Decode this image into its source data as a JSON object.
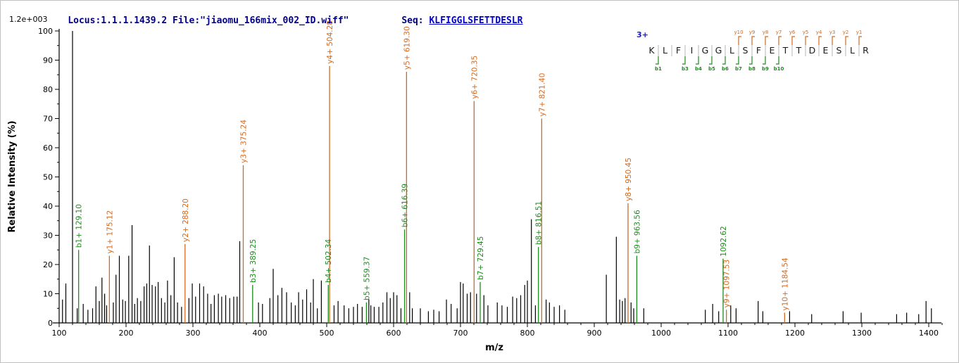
{
  "header": {
    "locus_file": "Locus:1.1.1.1439.2 File:\"jiaomu_166mix_002_ID.wiff\"",
    "seq_label": "Seq: ",
    "sequence": "KLFIGGLSFETTDESLR"
  },
  "colors": {
    "y_ion": "#d2691e",
    "b_ion": "#1e8b1e",
    "peak": "#000000",
    "header_text": "#00008b",
    "sequence_link": "#0000cd",
    "charge_label": "#1c1ccc"
  },
  "chart_data": {
    "type": "bar",
    "title": "",
    "xlabel": "m/z",
    "ylabel": "Relative Intensity (%)",
    "max_intensity_absolute": "1.2e+003",
    "xlim": [
      90,
      1420
    ],
    "ylim": [
      0,
      100
    ],
    "x_ticks": [
      100,
      200,
      300,
      400,
      500,
      600,
      700,
      800,
      900,
      1000,
      1100,
      1200,
      1300,
      1400
    ],
    "y_ticks": [
      0,
      10,
      20,
      30,
      40,
      50,
      60,
      70,
      80,
      90,
      100
    ],
    "grid": false,
    "legend": "none",
    "assigned_peaks": [
      {
        "ion": "b1",
        "mz": 129.1,
        "intensity": 25,
        "label": "b1+ 129.10",
        "series": "b"
      },
      {
        "ion": "y1",
        "mz": 175.12,
        "intensity": 23,
        "label": "y1+ 175.12",
        "series": "y"
      },
      {
        "ion": "y2",
        "mz": 288.2,
        "intensity": 27,
        "label": "y2+ 288.20",
        "series": "y"
      },
      {
        "ion": "y3",
        "mz": 375.24,
        "intensity": 54,
        "label": "y3+ 375.24",
        "series": "y"
      },
      {
        "ion": "b3",
        "mz": 389.25,
        "intensity": 13,
        "label": "b3+ 389.25",
        "series": "b"
      },
      {
        "ion": "b4",
        "mz": 502.34,
        "intensity": 13,
        "label": "b4+ 502.34",
        "series": "b"
      },
      {
        "ion": "y4",
        "mz": 504.28,
        "intensity": 88,
        "label": "y4+ 504.28",
        "series": "y"
      },
      {
        "ion": "b5",
        "mz": 559.37,
        "intensity": 7,
        "label": "b5+ 559.37",
        "series": "b"
      },
      {
        "ion": "b6",
        "mz": 616.39,
        "intensity": 32,
        "label": "b6+ 616.39",
        "series": "b"
      },
      {
        "ion": "y5",
        "mz": 619.3,
        "intensity": 86,
        "label": "y5+ 619.30",
        "series": "y"
      },
      {
        "ion": "y6",
        "mz": 720.35,
        "intensity": 76,
        "label": "y6+ 720.35",
        "series": "y"
      },
      {
        "ion": "b7",
        "mz": 729.45,
        "intensity": 14,
        "label": "b7+ 729.45",
        "series": "b"
      },
      {
        "ion": "b8",
        "mz": 816.51,
        "intensity": 26,
        "label": "b8+ 816.51",
        "series": "b"
      },
      {
        "ion": "y7",
        "mz": 821.4,
        "intensity": 70,
        "label": "y7+ 821.40",
        "series": "y"
      },
      {
        "ion": "y8",
        "mz": 950.45,
        "intensity": 41,
        "label": "y8+ 950.45",
        "series": "y"
      },
      {
        "ion": "b9",
        "mz": 963.56,
        "intensity": 23,
        "label": "b9+ 963.56",
        "series": "b"
      },
      {
        "ion": "b10",
        "mz": 1092.62,
        "intensity": 22,
        "label": "1092.62",
        "series": "b"
      },
      {
        "ion": "y9",
        "mz": 1097.53,
        "intensity": 4.5,
        "label": "y9+ 1097.53",
        "series": "y"
      },
      {
        "ion": "y10",
        "mz": 1184.54,
        "intensity": 3.5,
        "label": "y10+ 1184.54",
        "series": "y"
      }
    ],
    "unassigned_peaks": [
      [
        105,
        8
      ],
      [
        110,
        13.5
      ],
      [
        120,
        100
      ],
      [
        127,
        5
      ],
      [
        136,
        6.5
      ],
      [
        143,
        4.5
      ],
      [
        150,
        5
      ],
      [
        155,
        12.5
      ],
      [
        160,
        7.5
      ],
      [
        164,
        15.5
      ],
      [
        168,
        10
      ],
      [
        171,
        6
      ],
      [
        181,
        7
      ],
      [
        185,
        16.5
      ],
      [
        190,
        23
      ],
      [
        195,
        8
      ],
      [
        199,
        7.5
      ],
      [
        204,
        23
      ],
      [
        209,
        33.5
      ],
      [
        213,
        6.5
      ],
      [
        217,
        8.5
      ],
      [
        222,
        7.5
      ],
      [
        227,
        12.5
      ],
      [
        231,
        13.5
      ],
      [
        235,
        26.5
      ],
      [
        239,
        13
      ],
      [
        244,
        12.5
      ],
      [
        248,
        14
      ],
      [
        253,
        8.5
      ],
      [
        258,
        7
      ],
      [
        262,
        14.5
      ],
      [
        267,
        9.5
      ],
      [
        272,
        22.5
      ],
      [
        277,
        7
      ],
      [
        283,
        5.5
      ],
      [
        294,
        8.5
      ],
      [
        299,
        13.5
      ],
      [
        304,
        9
      ],
      [
        310,
        13.5
      ],
      [
        316,
        12.5
      ],
      [
        322,
        10
      ],
      [
        327,
        6.5
      ],
      [
        332,
        9.5
      ],
      [
        338,
        10
      ],
      [
        343,
        9
      ],
      [
        349,
        9.5
      ],
      [
        355,
        8.5
      ],
      [
        361,
        9
      ],
      [
        366,
        9
      ],
      [
        370,
        28
      ],
      [
        398,
        7
      ],
      [
        404,
        6.5
      ],
      [
        415,
        8.5
      ],
      [
        420,
        18.5
      ],
      [
        427,
        9.5
      ],
      [
        433,
        12
      ],
      [
        440,
        10.5
      ],
      [
        447,
        7
      ],
      [
        453,
        6
      ],
      [
        458,
        10.5
      ],
      [
        464,
        8
      ],
      [
        470,
        11.5
      ],
      [
        476,
        7
      ],
      [
        480,
        15
      ],
      [
        486,
        5
      ],
      [
        492,
        14.5
      ],
      [
        511,
        6
      ],
      [
        517,
        7.5
      ],
      [
        526,
        6
      ],
      [
        533,
        5
      ],
      [
        540,
        5.5
      ],
      [
        546,
        6.5
      ],
      [
        553,
        5.5
      ],
      [
        563,
        8
      ],
      [
        566,
        6
      ],
      [
        571,
        5.5
      ],
      [
        578,
        5.5
      ],
      [
        584,
        7
      ],
      [
        590,
        10.5
      ],
      [
        595,
        8.5
      ],
      [
        600,
        10.5
      ],
      [
        605,
        9.5
      ],
      [
        611,
        5
      ],
      [
        624,
        10.5
      ],
      [
        628,
        5
      ],
      [
        640,
        5
      ],
      [
        652,
        4
      ],
      [
        660,
        4.5
      ],
      [
        668,
        4
      ],
      [
        679,
        8
      ],
      [
        686,
        6.5
      ],
      [
        695,
        5
      ],
      [
        700,
        14
      ],
      [
        704,
        13.5
      ],
      [
        710,
        10
      ],
      [
        715,
        10.5
      ],
      [
        724,
        10
      ],
      [
        735,
        9.5
      ],
      [
        741,
        6
      ],
      [
        755,
        7
      ],
      [
        762,
        6
      ],
      [
        770,
        5.5
      ],
      [
        778,
        9
      ],
      [
        784,
        8.5
      ],
      [
        790,
        9.5
      ],
      [
        796,
        13
      ],
      [
        800,
        14.5
      ],
      [
        806,
        35.5
      ],
      [
        812,
        6
      ],
      [
        828,
        8
      ],
      [
        833,
        7
      ],
      [
        840,
        5.5
      ],
      [
        848,
        6
      ],
      [
        856,
        4.5
      ],
      [
        918,
        16.5
      ],
      [
        933,
        29.5
      ],
      [
        938,
        8
      ],
      [
        942,
        7.5
      ],
      [
        946,
        8.5
      ],
      [
        955,
        7
      ],
      [
        959,
        5
      ],
      [
        974,
        5
      ],
      [
        1066,
        4.5
      ],
      [
        1077,
        6.5
      ],
      [
        1086,
        4
      ],
      [
        1104,
        6
      ],
      [
        1112,
        5
      ],
      [
        1145,
        7.5
      ],
      [
        1152,
        4
      ],
      [
        1192,
        4
      ],
      [
        1225,
        3
      ],
      [
        1272,
        4
      ],
      [
        1299,
        3.5
      ],
      [
        1352,
        3
      ],
      [
        1367,
        3.5
      ],
      [
        1385,
        3
      ],
      [
        1396,
        7.5
      ],
      [
        1404,
        5
      ]
    ]
  },
  "sequence_annotation": {
    "charge_label": "3+",
    "residues": [
      "K",
      "L",
      "F",
      "I",
      "G",
      "G",
      "L",
      "S",
      "F",
      "E",
      "T",
      "T",
      "D",
      "E",
      "S",
      "L",
      "R"
    ],
    "y_ions": [
      {
        "name": "y10",
        "boundary": 7
      },
      {
        "name": "y9",
        "boundary": 8
      },
      {
        "name": "y8",
        "boundary": 9
      },
      {
        "name": "y7",
        "boundary": 10
      },
      {
        "name": "y6",
        "boundary": 11
      },
      {
        "name": "y5",
        "boundary": 12
      },
      {
        "name": "y4",
        "boundary": 13
      },
      {
        "name": "y3",
        "boundary": 14
      },
      {
        "name": "y2",
        "boundary": 15
      },
      {
        "name": "y1",
        "boundary": 16
      }
    ],
    "b_ions": [
      {
        "name": "b1",
        "boundary": 1
      },
      {
        "name": "b3",
        "boundary": 3
      },
      {
        "name": "b4",
        "boundary": 4
      },
      {
        "name": "b5",
        "boundary": 5
      },
      {
        "name": "b6",
        "boundary": 6
      },
      {
        "name": "b7",
        "boundary": 7
      },
      {
        "name": "b8",
        "boundary": 8
      },
      {
        "name": "b9",
        "boundary": 9
      },
      {
        "name": "b10",
        "boundary": 10
      }
    ]
  }
}
